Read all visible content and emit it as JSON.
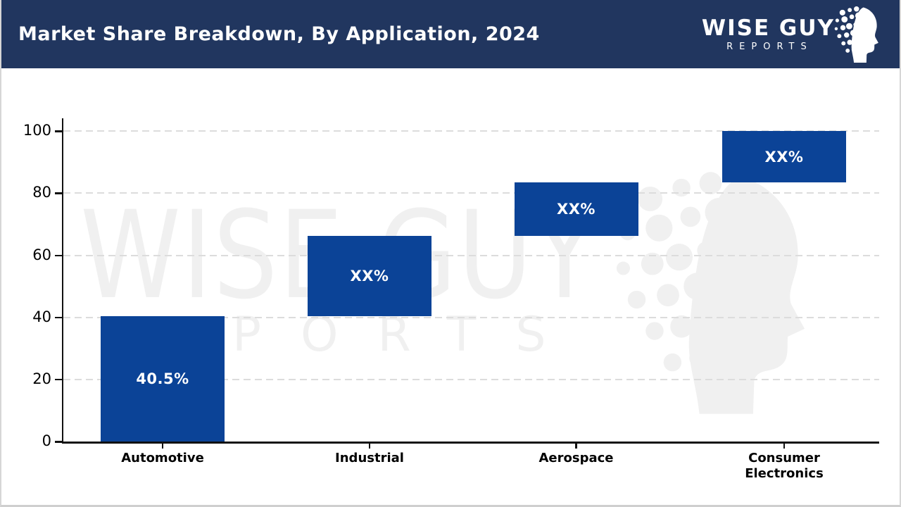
{
  "header": {
    "title": "Market Share Breakdown, By Application, 2024",
    "logo": {
      "line1": "WISE GUY",
      "line2": "REPORTS"
    }
  },
  "watermark": {
    "line1": "WISE GUY",
    "line2": "PORTS"
  },
  "chart_data": {
    "type": "bar",
    "subtype": "waterfall-floating-bars",
    "title": "Market Share Breakdown, By Application, 2024",
    "xlabel": "",
    "ylabel": "",
    "categories": [
      "Automotive",
      "Industrial",
      "Aerospace",
      "Consumer Electronics"
    ],
    "segments": [
      {
        "category": "Automotive",
        "start": 0,
        "end": 40.5,
        "label": "40.5%"
      },
      {
        "category": "Industrial",
        "start": 40.5,
        "end": 66.3,
        "label": "XX%"
      },
      {
        "category": "Aerospace",
        "start": 66.3,
        "end": 83.5,
        "label": "XX%"
      },
      {
        "category": "Consumer Electronics",
        "start": 83.5,
        "end": 100,
        "label": "XX%"
      }
    ],
    "yticks": [
      0,
      20,
      40,
      60,
      80,
      100
    ],
    "ylim": [
      0,
      105
    ],
    "grid": "horizontal-dashed",
    "legend": "none",
    "bar_color": "#0b4397",
    "bar_label_color": "#ffffff"
  },
  "colors": {
    "header_bg": "#21365f",
    "bar": "#0b4397",
    "gridline": "#dcdcdc",
    "axis": "#111111",
    "watermark": "#f0f0f0"
  }
}
